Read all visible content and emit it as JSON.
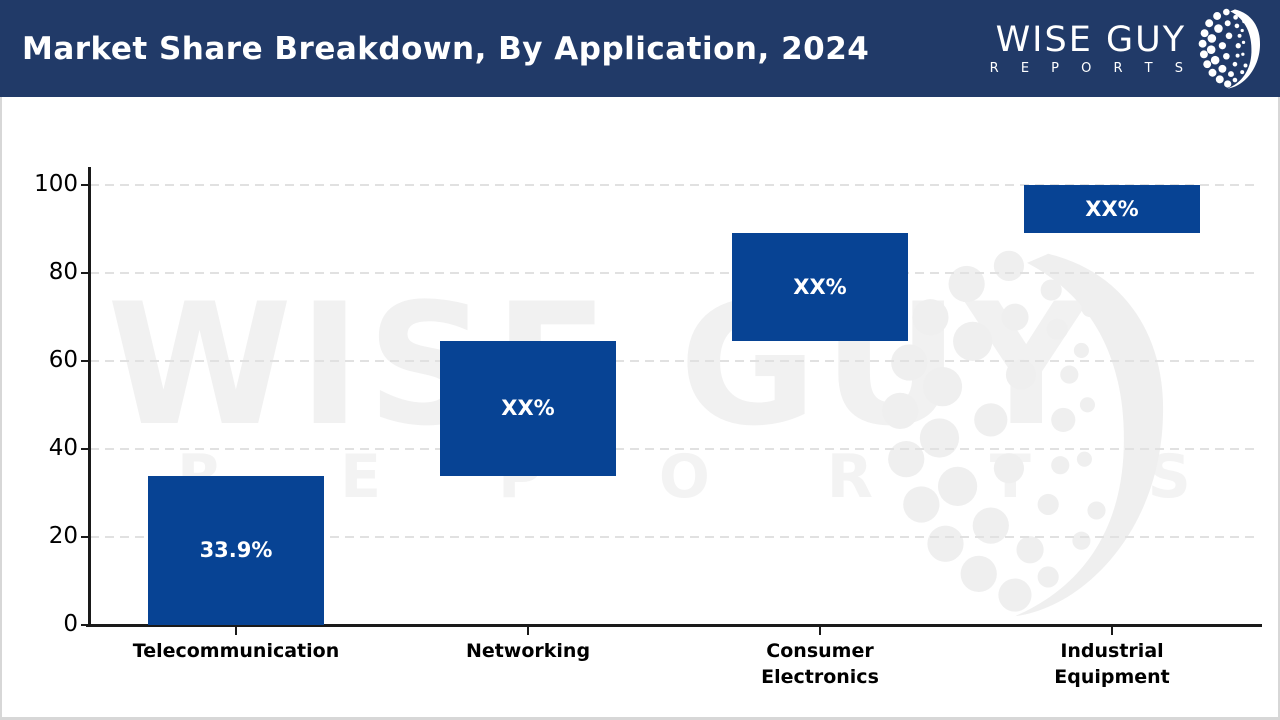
{
  "header": {
    "title": "Market Share Breakdown, By Application, 2024",
    "brand_name": "WISE GUY",
    "brand_sub": "R E P O R T S",
    "bg_color": "#213a68"
  },
  "watermark": {
    "line1": "WISE GUY",
    "line2": "R E P O R T S"
  },
  "chart_data": {
    "type": "bar",
    "subtype": "waterfall",
    "title": "Market Share Breakdown, By Application, 2024",
    "categories": [
      {
        "label": "Telecommunication",
        "lines": [
          "Telecommunication"
        ]
      },
      {
        "label": "Networking",
        "lines": [
          "Networking"
        ]
      },
      {
        "label": "Consumer Electronics",
        "lines": [
          "Consumer",
          "Electronics"
        ]
      },
      {
        "label": "Industrial Equipment",
        "lines": [
          "Industrial",
          "Equipment"
        ]
      }
    ],
    "segments": [
      {
        "category": "Telecommunication",
        "start": 0,
        "end": 33.9,
        "value": 33.9,
        "label": "33.9%"
      },
      {
        "category": "Networking",
        "start": 33.9,
        "end": 64.6,
        "value": 30.7,
        "label": "XX%"
      },
      {
        "category": "Consumer Electronics",
        "start": 64.6,
        "end": 89.1,
        "value": 24.5,
        "label": "XX%"
      },
      {
        "category": "Industrial Equipment",
        "start": 89.1,
        "end": 100,
        "value": 10.9,
        "label": "XX%"
      }
    ],
    "yticks": [
      0,
      20,
      40,
      60,
      80,
      100
    ],
    "ylim": [
      0,
      104
    ],
    "xlabel": "",
    "ylabel": "",
    "grid": "horizontal-dashed",
    "legend": "none",
    "colors": {
      "bar": "#074394",
      "axis": "#1a1a1a",
      "grid": "#e1e1e1",
      "bar_label": "#ffffff"
    }
  }
}
